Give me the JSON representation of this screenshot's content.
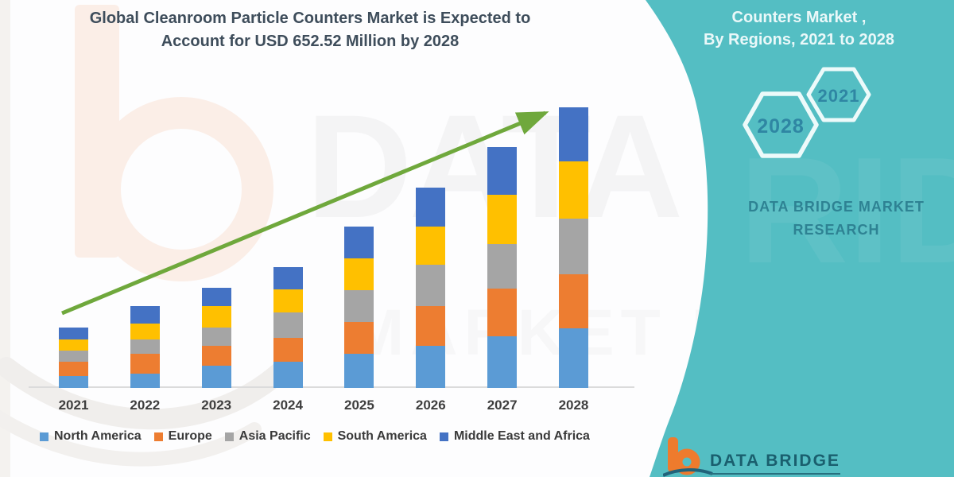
{
  "title": {
    "line1": "Global Cleanroom Particle Counters Market is Expected to",
    "line2": "Account for USD 652.52 Million by 2028"
  },
  "right_panel": {
    "heading_line1": "Counters Market ,",
    "heading_line2": "By Regions,  2021 to 2028",
    "hex_year_left": "2028",
    "hex_year_right": "2021",
    "brand_line1": "DATA BRIDGE MARKET",
    "brand_line2": "RESEARCH",
    "background_color": "#54BEC3",
    "heading_text_color": "#EAF8F9",
    "accent_text_color": "#2F86A3"
  },
  "footer_logo": {
    "brand": "DATA BRIDGE",
    "icon_color": "#EE7B2D",
    "swoosh_color": "#20637A",
    "text_color": "#1A5F6E"
  },
  "watermarks": {
    "text_top": "DATA BRIDGE",
    "text_bottom": "MARKET RESEARCH"
  },
  "chart_data": {
    "type": "bar",
    "stacked": true,
    "title": "Global Cleanroom Particle Counters Market is Expected to Account for USD 652.52 Million by 2028",
    "categories": [
      "2021",
      "2022",
      "2023",
      "2024",
      "2025",
      "2026",
      "2027",
      "2028"
    ],
    "unit": "USD Million (estimated)",
    "series": [
      {
        "name": "North America",
        "color": "#5B9BD5",
        "values": [
          28,
          33,
          52,
          61,
          80,
          98,
          120,
          139
        ]
      },
      {
        "name": "Europe",
        "color": "#ED7D31",
        "values": [
          33,
          46,
          46,
          55,
          74,
          92,
          111,
          126
        ]
      },
      {
        "name": "Asia Pacific",
        "color": "#A5A5A5",
        "values": [
          26,
          33,
          43,
          59,
          74,
          96,
          104,
          129
        ]
      },
      {
        "name": "South America",
        "color": "#FFC000",
        "values": [
          26,
          37,
          50,
          55,
          74,
          89,
          115,
          133
        ]
      },
      {
        "name": "Middle East and Africa",
        "color": "#4472C4",
        "values": [
          28,
          41,
          43,
          52,
          74,
          92,
          111,
          126
        ]
      }
    ],
    "totals": [
      141,
      190,
      234,
      282,
      376,
      467,
      561,
      653
    ],
    "final_value_label": "USD 652.52 Million by 2028",
    "trend_arrow": true,
    "trend_arrow_color": "#6FA83C",
    "legend_position": "bottom",
    "axis": {
      "y_axis_visible": false,
      "gridlines": false,
      "baseline_color": "#DBDBDB"
    }
  }
}
